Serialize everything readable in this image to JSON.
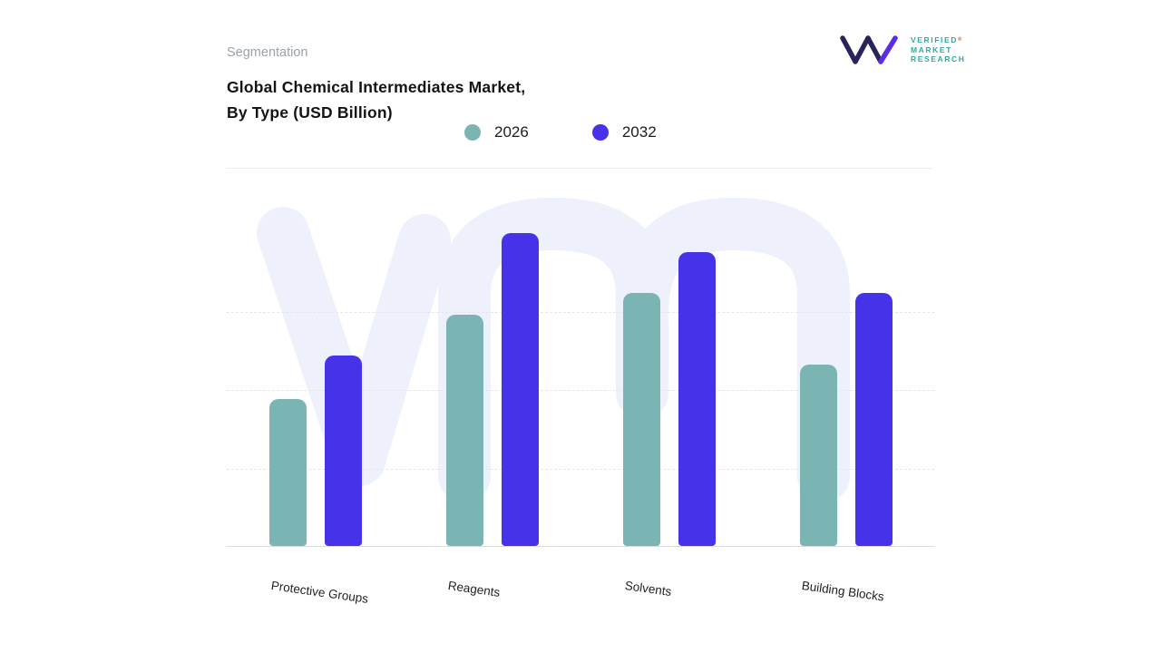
{
  "header": {
    "section_label": "Segmentation",
    "title_line1": "Global Chemical Intermediates Market,",
    "title_line2": "By Type (USD Billion)"
  },
  "logo": {
    "line1": "VERIFIED",
    "line2": "MARKET",
    "line3": "RESEARCH",
    "registered": "®",
    "mark_navy": "#29235c",
    "mark_purple": "#5b2ee5",
    "text_color": "#2fa9a2",
    "watermark_color": "#eef0fb"
  },
  "chart_data": {
    "type": "bar",
    "title": "Global Chemical Intermediates Market, By Type (USD Billion)",
    "unit": "USD Billion",
    "categories": [
      "Protective Groups",
      "Reagents",
      "Solvents",
      "Building Blocks"
    ],
    "series": [
      {
        "name": "2026",
        "color": "#7ab5b4",
        "values": [
          47,
          74,
          81,
          58
        ]
      },
      {
        "name": "2032",
        "color": "#4632e8",
        "values": [
          61,
          100,
          94,
          81
        ]
      }
    ],
    "ylim": [
      0,
      100
    ],
    "gridline_values": [
      25,
      50,
      75
    ],
    "grid": "horizontal-dashed",
    "legend_position": "top",
    "value_labels": false
  }
}
